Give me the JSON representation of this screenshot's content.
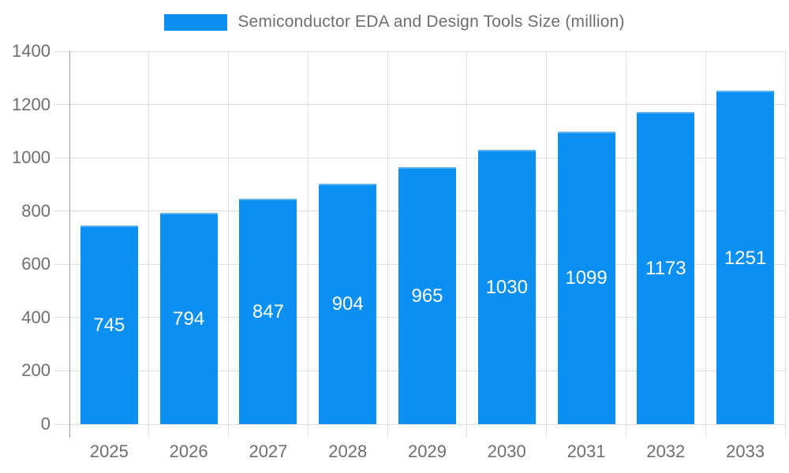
{
  "legend": {
    "label": "Semiconductor EDA and Design Tools Size (million)"
  },
  "chart_data": {
    "type": "bar",
    "title": "Semiconductor EDA and Design Tools Size (million)",
    "categories": [
      "2025",
      "2026",
      "2027",
      "2028",
      "2029",
      "2030",
      "2031",
      "2032",
      "2033"
    ],
    "values": [
      745,
      794,
      847,
      904,
      965,
      1030,
      1099,
      1173,
      1251
    ],
    "xlabel": "",
    "ylabel": "",
    "ylim": [
      0,
      1400
    ],
    "ytick_step": 200,
    "ytick_labels": [
      "0",
      "200",
      "400",
      "600",
      "800",
      "1000",
      "1200",
      "1400"
    ],
    "grid": true,
    "legend_position": "top-center",
    "value_labels": "inside-center"
  },
  "colors": {
    "bar_fill": "#0b90f2",
    "bar_edge": "#5fb2f5",
    "grid": "#e0e0e0",
    "axis_line": "#9e9e9e",
    "tick_text": "#6e6e6e",
    "value_text": "#ffffff",
    "background": "#ffffff"
  }
}
